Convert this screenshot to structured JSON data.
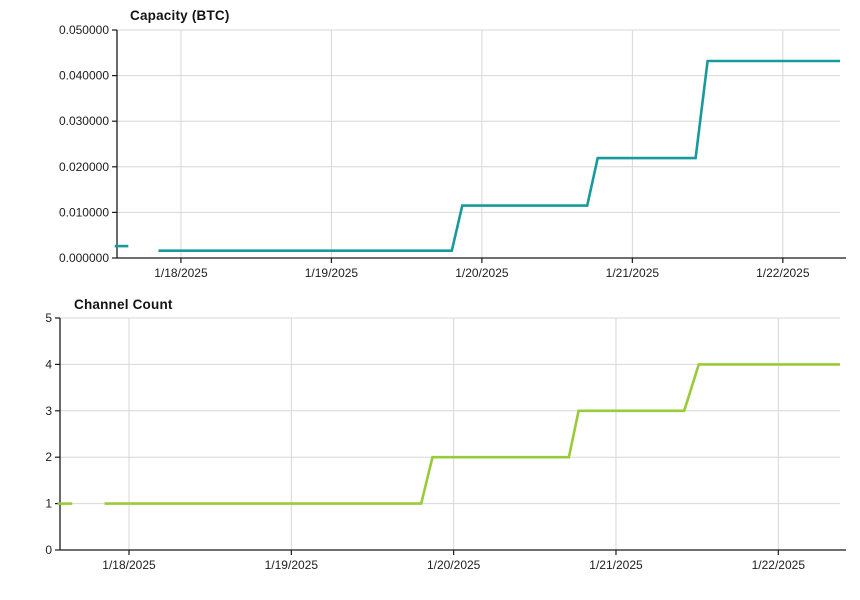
{
  "page": {
    "background": "#ffffff"
  },
  "charts": [
    {
      "id": "capacity",
      "title": "Capacity (BTC)",
      "chart_data": {
        "type": "line",
        "line_style": "step",
        "line_color": "#189a9c",
        "x_unit": "days since 1/18/2025 00:00",
        "xlim": [
          -0.425,
          4.38
        ],
        "ylim": [
          0,
          0.05
        ],
        "grid": true,
        "x_tick_values": [
          0,
          1,
          2,
          3,
          4
        ],
        "x_tick_labels": [
          "1/18/2025",
          "1/19/2025",
          "1/20/2025",
          "1/21/2025",
          "1/22/2025"
        ],
        "y_tick_values": [
          0,
          0.01,
          0.02,
          0.03,
          0.04,
          0.05
        ],
        "y_tick_labels": [
          "0.000000",
          "0.010000",
          "0.020000",
          "0.030000",
          "0.040000",
          "0.050000"
        ],
        "series": [
          {
            "name": "capacity-initial-segment",
            "points": [
              [
                -0.44,
                0.0026
              ],
              [
                -0.35,
                0.0026
              ]
            ]
          },
          {
            "name": "capacity-main",
            "points": [
              [
                -0.15,
                0.0016
              ],
              [
                1.8,
                0.0016
              ],
              [
                1.87,
                0.0115
              ],
              [
                2.7,
                0.0115
              ],
              [
                2.77,
                0.0219
              ],
              [
                3.42,
                0.0219
              ],
              [
                3.5,
                0.0432
              ],
              [
                4.38,
                0.0432
              ]
            ]
          }
        ]
      }
    },
    {
      "id": "channel-count",
      "title": "Channel Count",
      "chart_data": {
        "type": "line",
        "line_style": "step",
        "line_color": "#99cb38",
        "x_unit": "days since 1/18/2025 00:00",
        "xlim": [
          -0.425,
          4.38
        ],
        "ylim": [
          0,
          5
        ],
        "grid": true,
        "x_tick_values": [
          0,
          1,
          2,
          3,
          4
        ],
        "x_tick_labels": [
          "1/18/2025",
          "1/19/2025",
          "1/20/2025",
          "1/21/2025",
          "1/22/2025"
        ],
        "y_tick_values": [
          0,
          1,
          2,
          3,
          4,
          5
        ],
        "y_tick_labels": [
          "0",
          "1",
          "2",
          "3",
          "4",
          "5"
        ],
        "series": [
          {
            "name": "channels-initial-segment",
            "points": [
              [
                -0.44,
                1
              ],
              [
                -0.35,
                1
              ]
            ]
          },
          {
            "name": "channels-main",
            "points": [
              [
                -0.15,
                1
              ],
              [
                1.8,
                1
              ],
              [
                1.87,
                2
              ],
              [
                2.71,
                2
              ],
              [
                2.77,
                3
              ],
              [
                3.42,
                3
              ],
              [
                3.51,
                4
              ],
              [
                4.38,
                4
              ]
            ]
          }
        ]
      }
    }
  ],
  "style": {
    "grid_color": "#d7d7d7",
    "axis_color": "#1a1a1a",
    "tick_label_color": "#1d1d1d"
  }
}
